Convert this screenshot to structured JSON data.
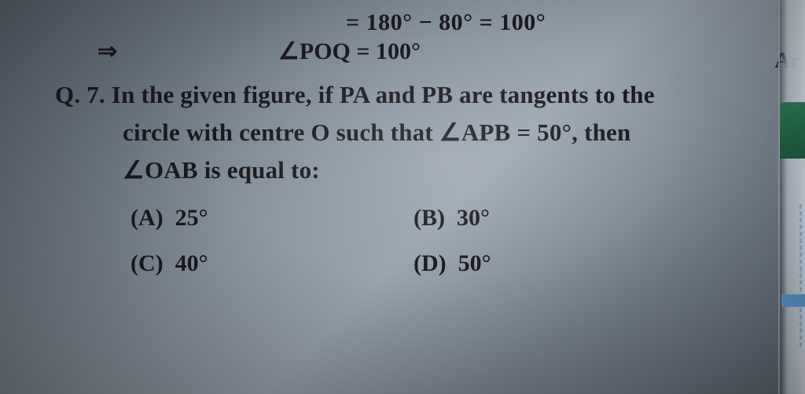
{
  "colors": {
    "text": "#1a1a1f",
    "bg_gradient_start": "#5a6570",
    "bg_gradient_mid": "#9aa5b0",
    "bg_gradient_end": "#5a6570",
    "edge_green": "#2a7a55",
    "edge_blue": "#5a9ad0",
    "dash_blue": "#6aa9d8"
  },
  "typography": {
    "family": "Georgia, 'Times New Roman', serif",
    "question_size_pt": 23,
    "option_size_pt": 22,
    "math_size_pt": 22,
    "weight": "bold"
  },
  "math": {
    "line1": "= 180° − 80° = 100°",
    "line2_arrow": "⇒",
    "line2_expr": "∠POQ = 100°"
  },
  "margin_text": "Ar",
  "question": {
    "number": "Q. 7.",
    "text_line1": "In the given figure, if PA and PB are tangents to the",
    "text_line2": "circle with centre O such that ∠APB = 50°, then",
    "text_line3": "∠OAB is equal to:"
  },
  "options": {
    "a": {
      "label": "(A)",
      "value": "25°"
    },
    "b": {
      "label": "(B)",
      "value": "30°"
    },
    "c": {
      "label": "(C)",
      "value": "40°"
    },
    "d": {
      "label": "(D)",
      "value": "50°"
    }
  }
}
